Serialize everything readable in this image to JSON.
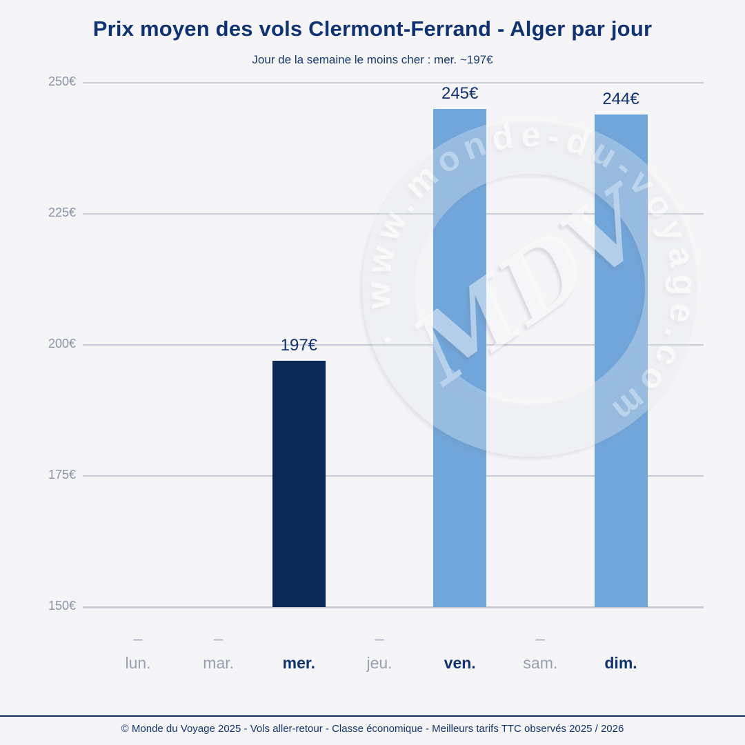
{
  "title": "Prix moyen des vols Clermont-Ferrand - Alger par jour",
  "subtitle": "Jour de la semaine le moins cher : mer. ~197€",
  "watermark": {
    "ring_text": "· www.monde-du-voyage.com",
    "center_text": "MDV"
  },
  "footer": {
    "text": "© Monde du Voyage 2025 - Vols aller-retour - Classe économique - Meilleurs tarifs TTC observés 2025 / 2026"
  },
  "colors": {
    "background": "#f5f5f7",
    "title": "#0e3273",
    "bar_highlight": "#0b2a57",
    "bar_normal": "#71a6da",
    "grid": "#c6cbd5",
    "y_axis_label": "#8a93a6",
    "x_label_data": "#103271",
    "x_label_no_data": "#97a0b0",
    "no_data_marker": "#a9b1bf",
    "footer_line": "#0d2d5c"
  },
  "chart_data": {
    "type": "bar",
    "categories": [
      "lun.",
      "mar.",
      "mer.",
      "jeu.",
      "ven.",
      "sam.",
      "dim."
    ],
    "values": [
      null,
      null,
      197,
      null,
      245,
      null,
      244
    ],
    "value_suffix": "€",
    "no_data_marker": "–",
    "highlight_index": 2,
    "highlight_meaning": "cheapest day",
    "ylim": [
      150,
      250
    ],
    "yticks": [
      150,
      175,
      200,
      225,
      250
    ],
    "ytick_labels": [
      "150€",
      "175€",
      "200€",
      "225€",
      "250€"
    ],
    "grid": true,
    "legend": false,
    "title": "Prix moyen des vols Clermont-Ferrand - Alger par jour",
    "xlabel": "",
    "ylabel": ""
  }
}
